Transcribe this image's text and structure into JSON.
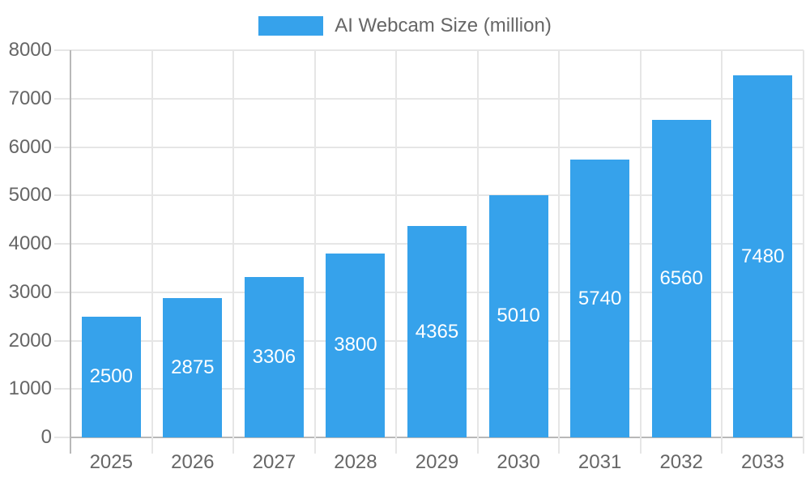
{
  "chart_data": {
    "type": "bar",
    "title": "",
    "legend": "AI Webcam Size (million)",
    "legend_position": "top-center",
    "categories": [
      "2025",
      "2026",
      "2027",
      "2028",
      "2029",
      "2030",
      "2031",
      "2032",
      "2033"
    ],
    "series": [
      {
        "name": "AI Webcam Size (million)",
        "values": [
          2500,
          2875,
          3306,
          3800,
          4365,
          5010,
          5740,
          6560,
          7480
        ]
      }
    ],
    "data_labels": [
      "2500",
      "2875",
      "3306",
      "3800",
      "4365",
      "5010",
      "5740",
      "6560",
      "7480"
    ],
    "data_label_position": "inside-center",
    "xlabel": "",
    "ylabel": "",
    "ylim": [
      0,
      8000
    ],
    "ytick_step": 1000,
    "ytick_labels": [
      "0",
      "1000",
      "2000",
      "3000",
      "4000",
      "5000",
      "6000",
      "7000",
      "8000"
    ],
    "grid": true,
    "colors": {
      "bar": "#36A2EB",
      "grid_line": "#E6E6E6",
      "axis_line": "#B8B8B8",
      "axis_text": "#666666",
      "bar_label_text": "#FFFFFF",
      "background": "#FFFFFF"
    }
  }
}
